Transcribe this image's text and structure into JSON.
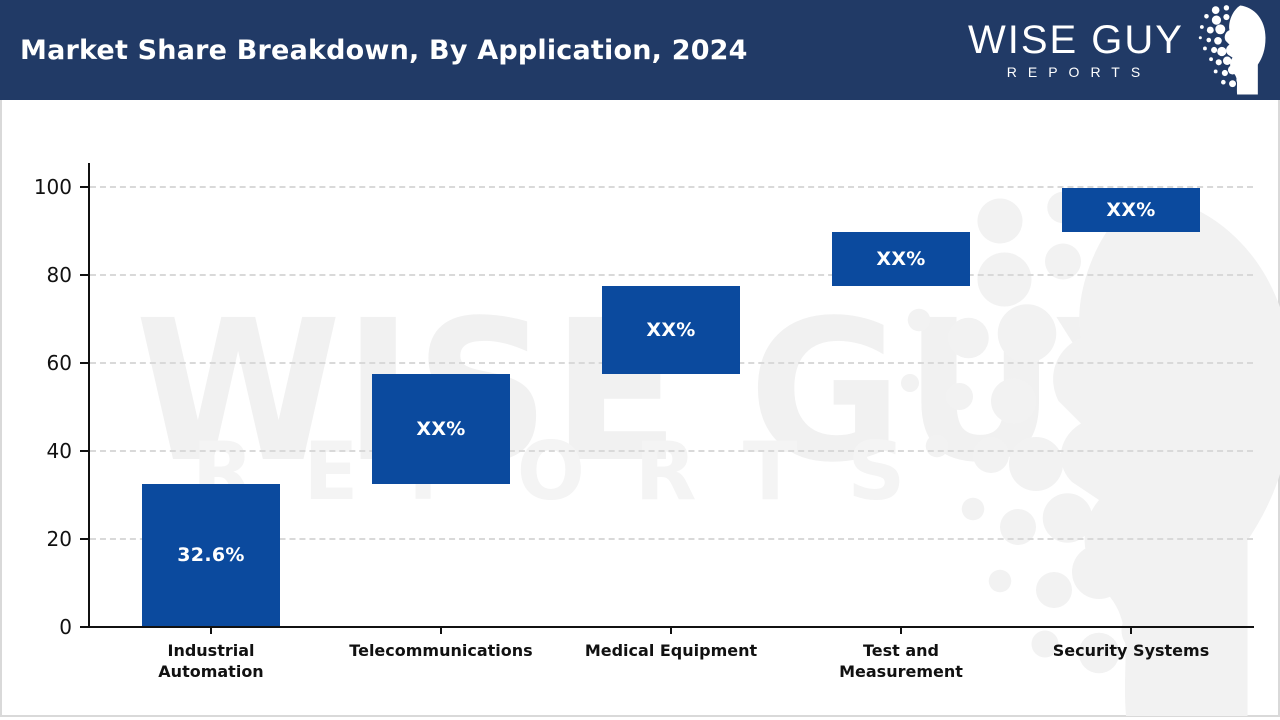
{
  "header": {
    "title": "Market Share Breakdown, By Application, 2024",
    "logo": {
      "line1": "WISE GUY",
      "line2": "REPORTS"
    }
  },
  "watermark": {
    "line1": "WISE GUY",
    "line2": "REPORTS"
  },
  "colors": {
    "header_bg": "#213A66",
    "bar": "#0B4A9E",
    "bar_label": "#ffffff",
    "grid": "#d9d9d9",
    "axis": "#111111",
    "watermark": "#f1f1f1"
  },
  "chart_data": {
    "type": "bar",
    "subtype": "waterfall",
    "title": "Market Share Breakdown, By Application, 2024",
    "categories": [
      "Industrial Automation",
      "Telecommunications",
      "Medical Equipment",
      "Test and Measurement",
      "Security Systems"
    ],
    "category_lines": [
      [
        "Industrial",
        "Automation"
      ],
      [
        "Telecommunications"
      ],
      [
        "Medical Equipment"
      ],
      [
        "Test and",
        "Measurement"
      ],
      [
        "Security Systems"
      ]
    ],
    "segments": [
      {
        "category": "Industrial Automation",
        "start": 0,
        "end": 32.6,
        "bar_label": "32.6%"
      },
      {
        "category": "Telecommunications",
        "start": 32.6,
        "end": 57.5,
        "bar_label": "XX%"
      },
      {
        "category": "Medical Equipment",
        "start": 57.5,
        "end": 77.5,
        "bar_label": "XX%"
      },
      {
        "category": "Test and Measurement",
        "start": 77.5,
        "end": 89.8,
        "bar_label": "XX%"
      },
      {
        "category": "Security Systems",
        "start": 89.8,
        "end": 99.8,
        "bar_label": "XX%"
      }
    ],
    "xlabel": "",
    "ylabel": "",
    "yticks": [
      0,
      20,
      40,
      60,
      80,
      100
    ],
    "ylim": [
      0,
      100
    ],
    "grid": "horizontal-dashed",
    "legend": "none"
  }
}
